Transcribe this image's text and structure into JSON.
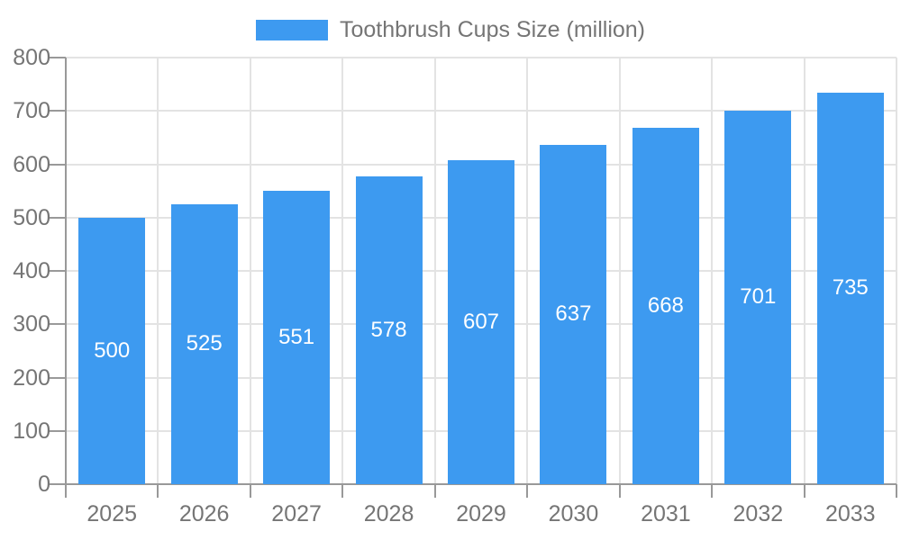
{
  "legend": {
    "items": [
      {
        "label": "Toothbrush Cups Size (million)",
        "color": "#3D9AF0"
      }
    ]
  },
  "chart_data": {
    "type": "bar",
    "title": "Toothbrush Cups Size (million)",
    "categories": [
      "2025",
      "2026",
      "2027",
      "2028",
      "2029",
      "2030",
      "2031",
      "2032",
      "2033"
    ],
    "series": [
      {
        "name": "Toothbrush Cups Size (million)",
        "values": [
          500,
          525,
          551,
          578,
          607,
          637,
          668,
          701,
          735
        ],
        "color": "#3D9AF0"
      }
    ],
    "value_labels": [
      "500",
      "525",
      "551",
      "578",
      "607",
      "637",
      "668",
      "701",
      "735"
    ],
    "value_label_position": "inside-middle",
    "xlabel": "",
    "ylabel": "",
    "ylim": [
      0,
      800
    ],
    "ytick_step": 100,
    "yticks": [
      0,
      100,
      200,
      300,
      400,
      500,
      600,
      700,
      800
    ],
    "grid": true,
    "legend_position": "top-center",
    "colors": {
      "bar": "#3D9AF0",
      "axis_line": "#999999",
      "tick": "#999999",
      "grid_line": "#E3E3E3",
      "axis_label": "#757575",
      "value_label": "#FFFFFF",
      "legend_text": "#757575",
      "background": "#FFFFFF"
    }
  }
}
